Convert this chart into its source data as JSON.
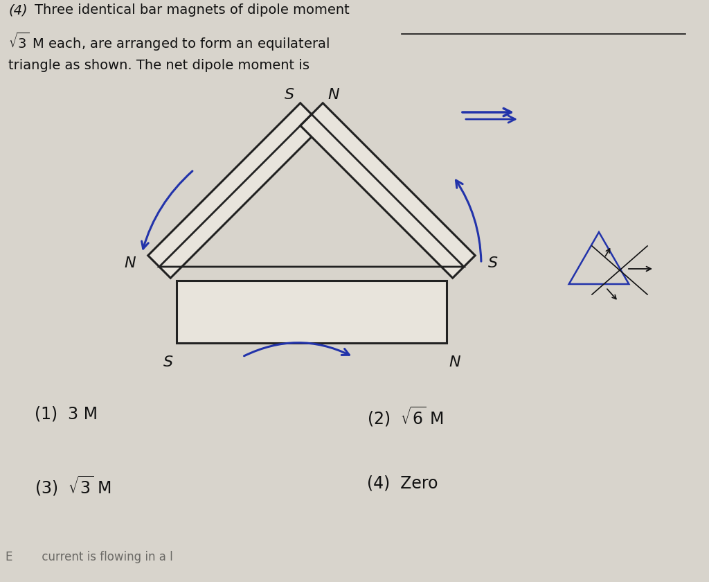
{
  "bg_color": "#d8d4cc",
  "text_color": "#111111",
  "arrow_color": "#2233aa",
  "line_color": "#222222",
  "magnet_fill": "#e8e4dc",
  "top_text_lines": [
    "(4)  Three identical bar magnets of dipole moment",
    "√3 M each, are arranged to form an equilateral",
    "triangle as shown. The net dipole moment is"
  ],
  "label_S_topleft": "S",
  "label_N_topright": "N",
  "label_N_midleft": "N",
  "label_S_midright": "S",
  "label_S_botleft": "S",
  "label_N_botright": "N",
  "opt1": "(1)  3 M",
  "opt2_sqrt": "6",
  "opt3_sqrt": "3",
  "opt4": "(4)  Zero",
  "bottom_note": "current is flowing in a l"
}
